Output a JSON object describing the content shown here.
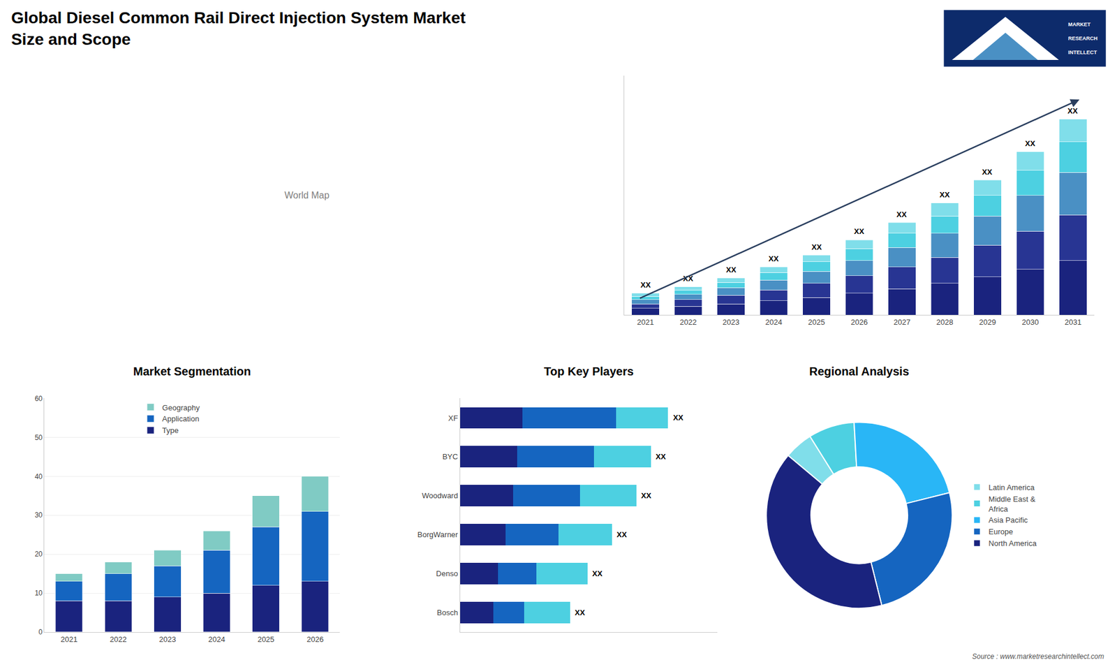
{
  "title": "Global Diesel Common Rail Direct Injection System Market\nSize and Scope",
  "annotations": [
    "World Map",
    "MARKET",
    "RESEARCH",
    "INTELLECT",
    "Source : www.marketresearchintellect.com"
  ],
  "chart_data": [
    {
      "type": "bar",
      "stacked": true,
      "categories": [
        "2021",
        "2022",
        "2023",
        "2024",
        "2025",
        "2026",
        "2027",
        "2028",
        "2029",
        "2030",
        "2031"
      ],
      "series": [
        {
          "color": "#1a237e",
          "values": [
            0.6,
            0.8,
            1.0,
            1.3,
            1.6,
            2.0,
            2.4,
            2.9,
            3.5,
            4.2,
            5.0
          ]
        },
        {
          "color": "#283593",
          "values": [
            0.4,
            0.6,
            0.8,
            1.0,
            1.3,
            1.6,
            2.0,
            2.4,
            2.9,
            3.5,
            4.2
          ]
        },
        {
          "color": "#4a90c4",
          "values": [
            0.4,
            0.5,
            0.7,
            0.9,
            1.1,
            1.4,
            1.8,
            2.2,
            2.7,
            3.3,
            3.9
          ]
        },
        {
          "color": "#4dd0e1",
          "values": [
            0.3,
            0.4,
            0.5,
            0.7,
            0.9,
            1.1,
            1.3,
            1.6,
            1.9,
            2.3,
            2.8
          ]
        },
        {
          "color": "#80deea",
          "values": [
            0.3,
            0.3,
            0.4,
            0.5,
            0.6,
            0.8,
            1.0,
            1.2,
            1.4,
            1.7,
            2.1
          ]
        }
      ],
      "ylim": [
        0,
        22
      ],
      "tick_labels": "x",
      "grid": false,
      "annotations": [
        "XX",
        "XX",
        "XX",
        "XX",
        "XX",
        "XX",
        "XX",
        "XX",
        "XX",
        "XX",
        "XX"
      ]
    },
    {
      "type": "bar",
      "stacked": true,
      "title": "Market Segmentation",
      "categories": [
        "2021",
        "2022",
        "2023",
        "2024",
        "2025",
        "2026"
      ],
      "series": [
        {
          "name": "Type",
          "color": "#1a237e",
          "values": [
            8,
            8,
            9,
            10,
            12,
            13
          ]
        },
        {
          "name": "Application",
          "color": "#1565c0",
          "values": [
            5,
            7,
            8,
            11,
            15,
            18
          ]
        },
        {
          "name": "Geography",
          "color": "#80cbc4",
          "values": [
            2,
            3,
            4,
            5,
            8,
            9
          ]
        }
      ],
      "ylim": [
        0,
        60
      ],
      "yticks": [
        0,
        10,
        20,
        30,
        40,
        50,
        60
      ],
      "grid": true,
      "legend": "upper left"
    },
    {
      "type": "bar",
      "stacked": true,
      "orientation": "horizontal",
      "title": "Top Key Players",
      "categories": [
        "XF",
        "BYC",
        "Woodward",
        "BorgWarner",
        "Denso",
        "Bosch"
      ],
      "series": [
        {
          "color": "#1a237e",
          "values": [
            0.255,
            0.234,
            0.216,
            0.186,
            0.156,
            0.135
          ]
        },
        {
          "color": "#1565c0",
          "values": [
            0.3825,
            0.312,
            0.2736,
            0.217,
            0.156,
            0.126
          ]
        },
        {
          "color": "#4dd0e1",
          "values": [
            0.2125,
            0.234,
            0.2304,
            0.217,
            0.208,
            0.189
          ]
        }
      ],
      "xlim": [
        0,
        1.05
      ],
      "tick_labels": "y",
      "grid": false,
      "annotations": [
        "XX",
        "XX",
        "XX",
        "XX",
        "XX",
        "XX"
      ]
    },
    {
      "type": "donut",
      "title": "Regional Analysis",
      "categories": [
        "Latin America",
        "Middle East &\nAfrica",
        "Asia Pacific",
        "Europe",
        "North America"
      ],
      "values": [
        5,
        8,
        22,
        25,
        40
      ],
      "colors": [
        "#80deea",
        "#4dd0e1",
        "#29b6f6",
        "#1565c0",
        "#1a237e"
      ],
      "legend": "right"
    }
  ]
}
